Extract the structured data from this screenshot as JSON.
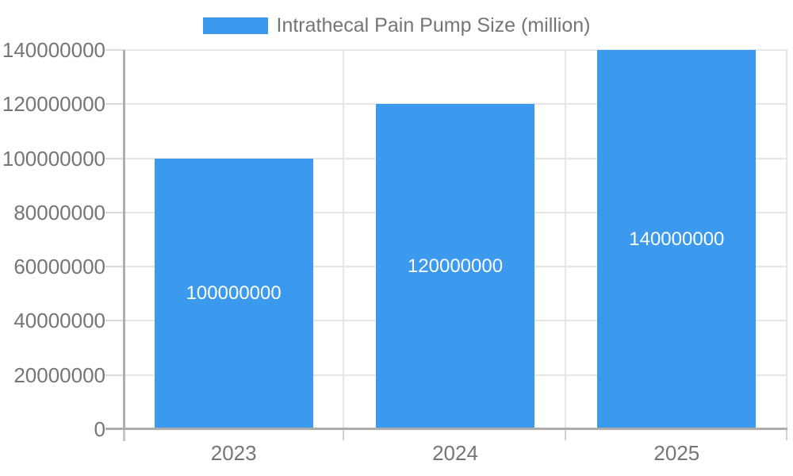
{
  "legend": {
    "label": "Intrathecal Pain Pump Size (million)"
  },
  "chart_data": {
    "type": "bar",
    "title": "",
    "categories": [
      "2023",
      "2024",
      "2025"
    ],
    "series": [
      {
        "name": "Intrathecal Pain Pump Size (million)",
        "values": [
          100000000,
          120000000,
          140000000
        ]
      }
    ],
    "bar_labels": [
      "100000000",
      "120000000",
      "140000000"
    ],
    "xlabel": "",
    "ylabel": "",
    "ylim": [
      0,
      140000000
    ],
    "yticks": [
      {
        "value": 0,
        "label": "0"
      },
      {
        "value": 20000000,
        "label": "20000000"
      },
      {
        "value": 40000000,
        "label": "40000000"
      },
      {
        "value": 60000000,
        "label": "60000000"
      },
      {
        "value": 80000000,
        "label": "80000000"
      },
      {
        "value": 100000000,
        "label": "100000000"
      },
      {
        "value": 120000000,
        "label": "120000000"
      },
      {
        "value": 140000000,
        "label": "140000000"
      }
    ],
    "grid": true,
    "legend_position": "top",
    "colors": {
      "bar": "#3B99EE",
      "grid": "#e6e6e6",
      "axis": "#adadad",
      "axis_extension": "#c6c6c6",
      "ytick_mark": "#d9d9d9",
      "xtick_mark": "#cfcfcf",
      "tick_label": "#757575",
      "bar_label": "#ffffff",
      "background": "#ffffff"
    }
  }
}
